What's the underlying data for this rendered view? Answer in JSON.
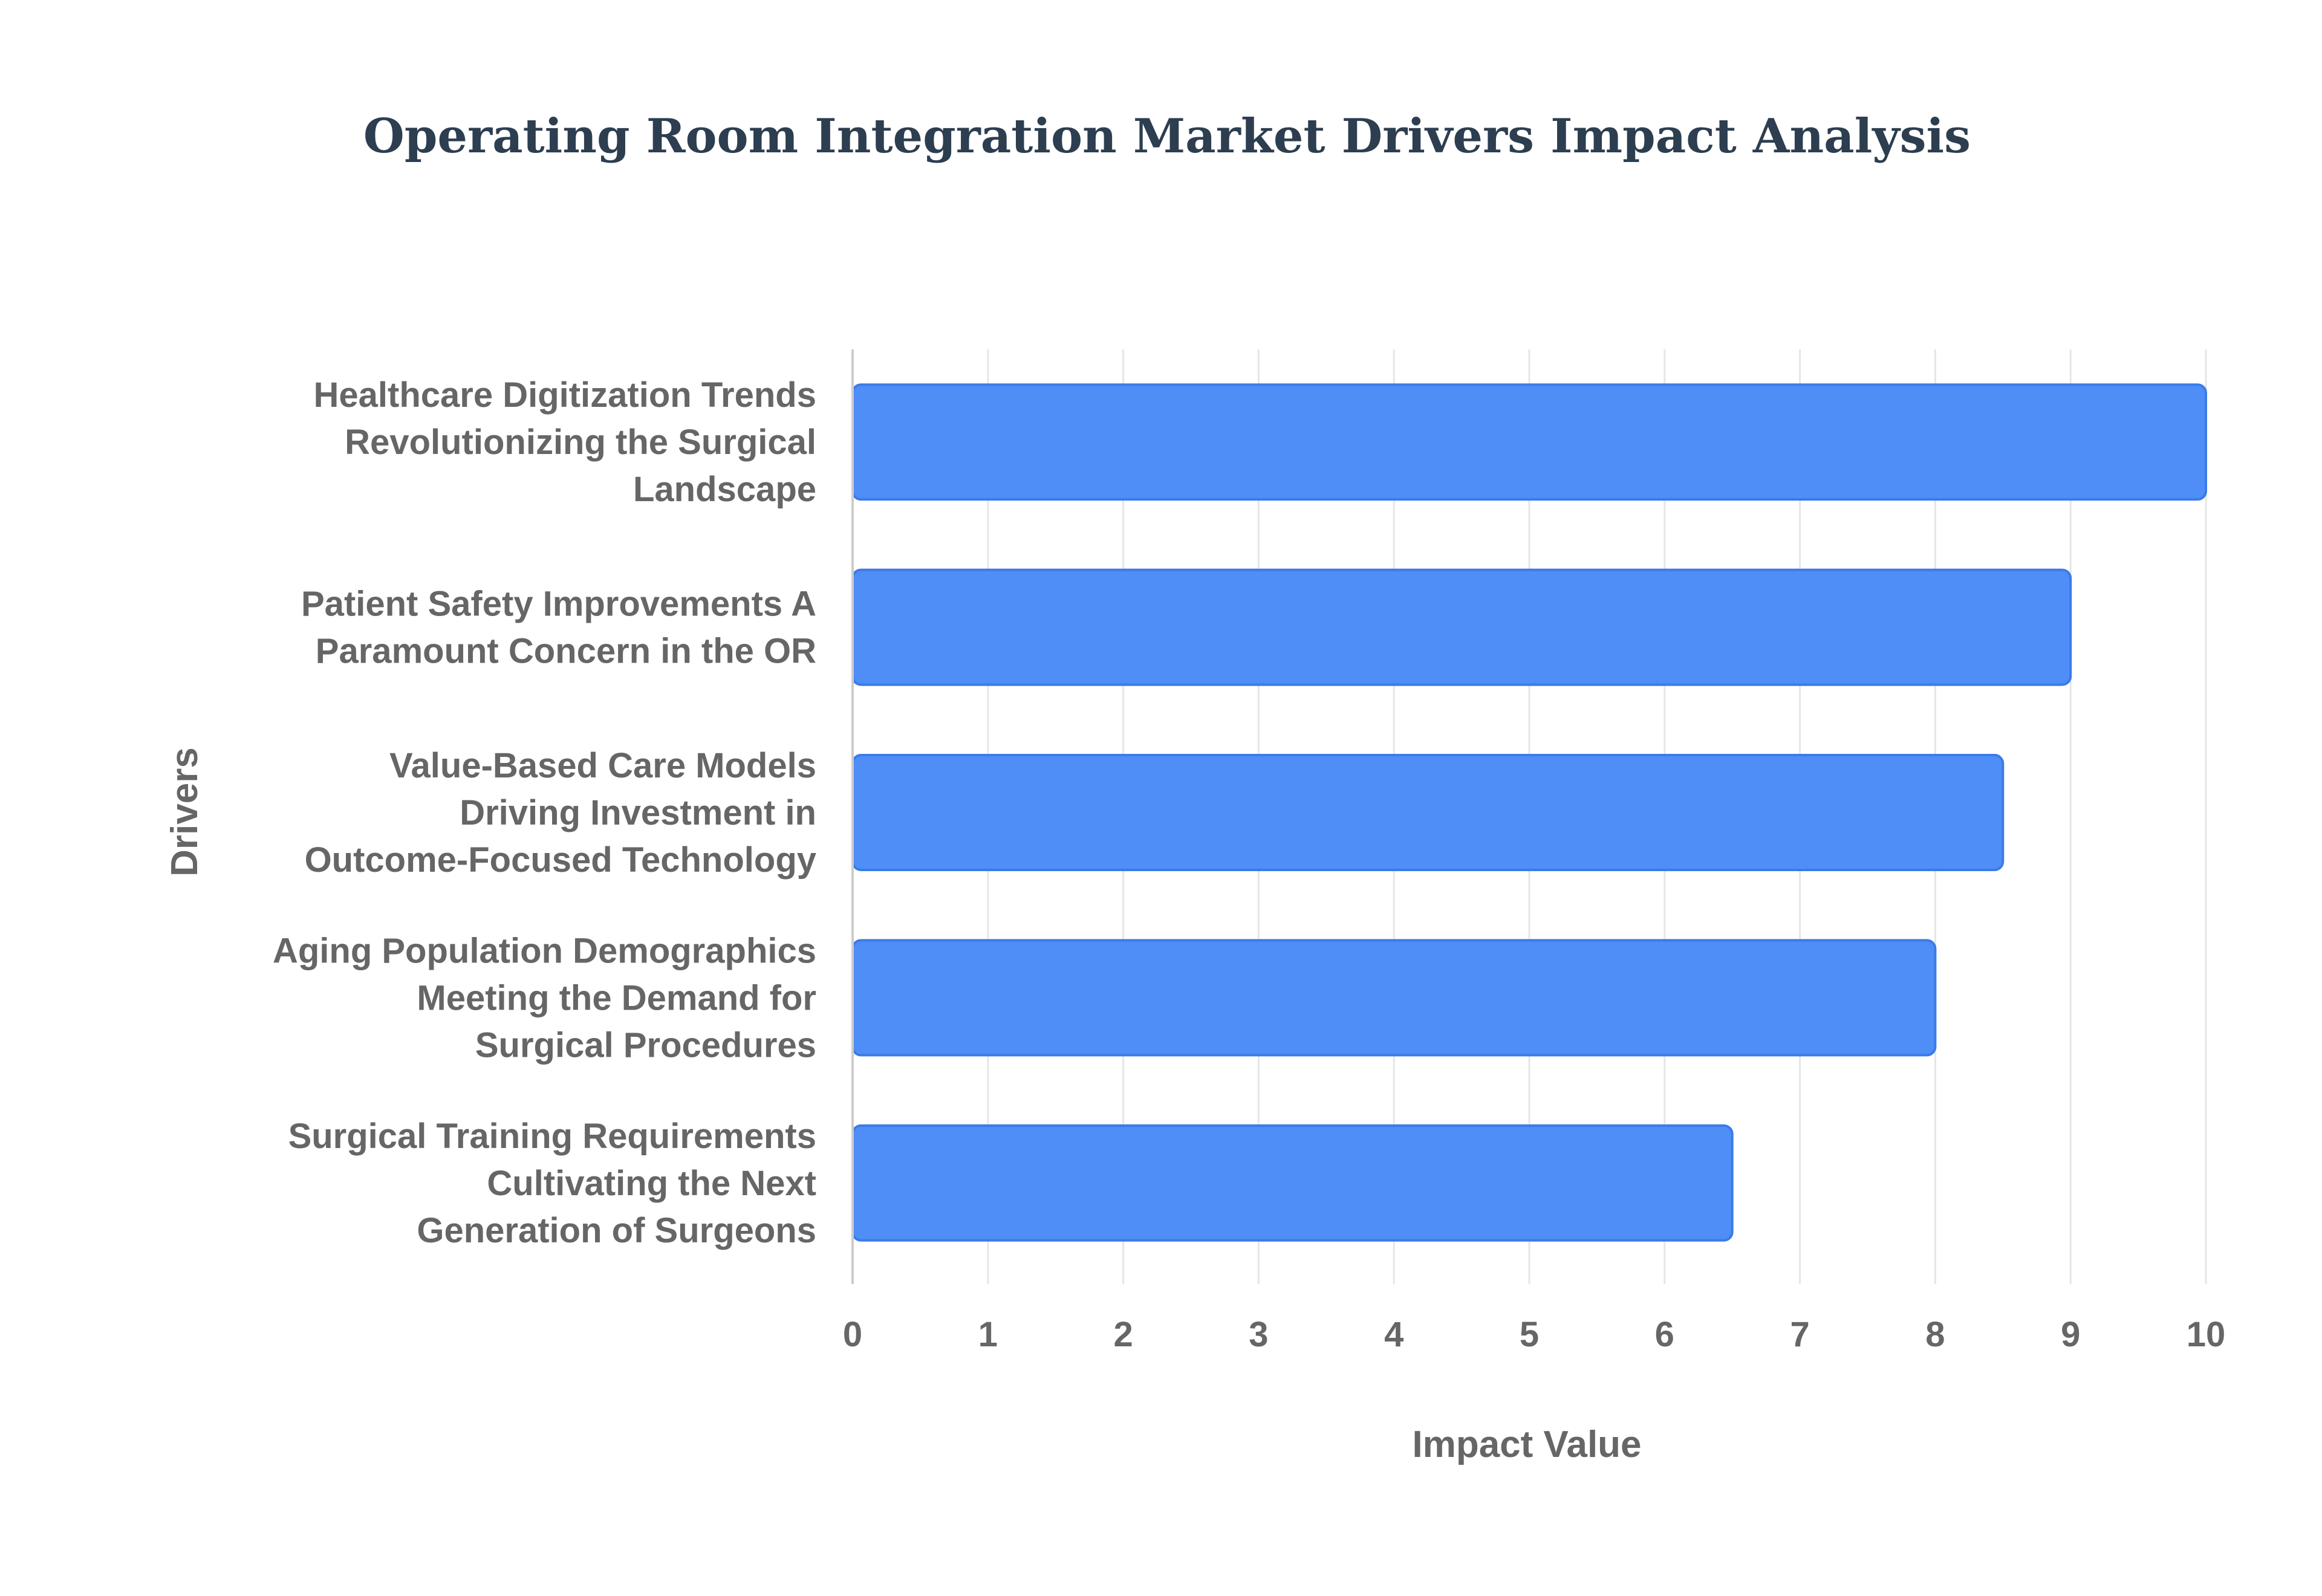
{
  "colors": {
    "title": "#2c3e50",
    "text": "#666666",
    "bar_fill": "#4f8ef7",
    "bar_stroke": "#3b7be8",
    "grid": "#e6e6e6",
    "axis": "#cccccc"
  },
  "chart_data": {
    "type": "bar",
    "orientation": "horizontal",
    "title": "Operating Room Integration Market Drivers Impact Analysis",
    "xlabel": "Impact Value",
    "ylabel": "Drivers",
    "xlim": [
      0,
      10
    ],
    "x_ticks": [
      "0",
      "1",
      "2",
      "3",
      "4",
      "5",
      "6",
      "7",
      "8",
      "9",
      "10"
    ],
    "grid": true,
    "categories": [
      "Healthcare Digitization Trends Revolutionizing the Surgical Landscape",
      "Patient Safety Improvements A Paramount Concern in the OR",
      "Value-Based Care Models Driving Investment in Outcome-Focused Technology",
      "Aging Population Demographics Meeting the Demand for Surgical Procedures",
      "Surgical Training Requirements Cultivating the Next Generation of Surgeons"
    ],
    "category_lines": [
      [
        "Healthcare Digitization Trends",
        "Revolutionizing the Surgical",
        "Landscape"
      ],
      [
        "Patient Safety Improvements A",
        "Paramount Concern in the OR"
      ],
      [
        "Value-Based Care Models",
        "Driving Investment in",
        "Outcome-Focused Technology"
      ],
      [
        "Aging Population Demographics",
        "Meeting the Demand for",
        "Surgical Procedures"
      ],
      [
        "Surgical Training Requirements",
        "Cultivating the Next",
        "Generation of Surgeons"
      ]
    ],
    "values": [
      10,
      9,
      8.5,
      8,
      6.5
    ]
  }
}
